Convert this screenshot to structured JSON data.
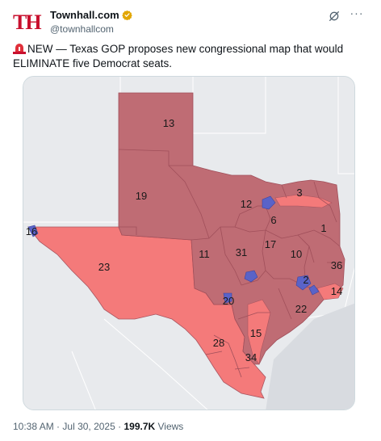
{
  "header": {
    "logo_text": "TH",
    "display_name": "Townhall.com",
    "handle": "@townhallcom",
    "verified_color": "#e2a600"
  },
  "tweet": {
    "text": "NEW — Texas GOP proposes new congressional map that would ELIMINATE five Democrat seats."
  },
  "map": {
    "colors": {
      "republican_existing": "#bf6c74",
      "republican_new": "#f47a7a",
      "democrat": "#5a63c8",
      "background": "#e8eaed"
    },
    "district_labels": [
      "13",
      "3",
      "19",
      "12",
      "6",
      "1",
      "16",
      "17",
      "11",
      "31",
      "10",
      "36",
      "23",
      "2",
      "14",
      "20",
      "22",
      "15",
      "28",
      "34"
    ]
  },
  "meta": {
    "time": "10:38 AM",
    "date": "Jul 30, 2025",
    "views_count": "199.7K",
    "views_label": "Views"
  }
}
